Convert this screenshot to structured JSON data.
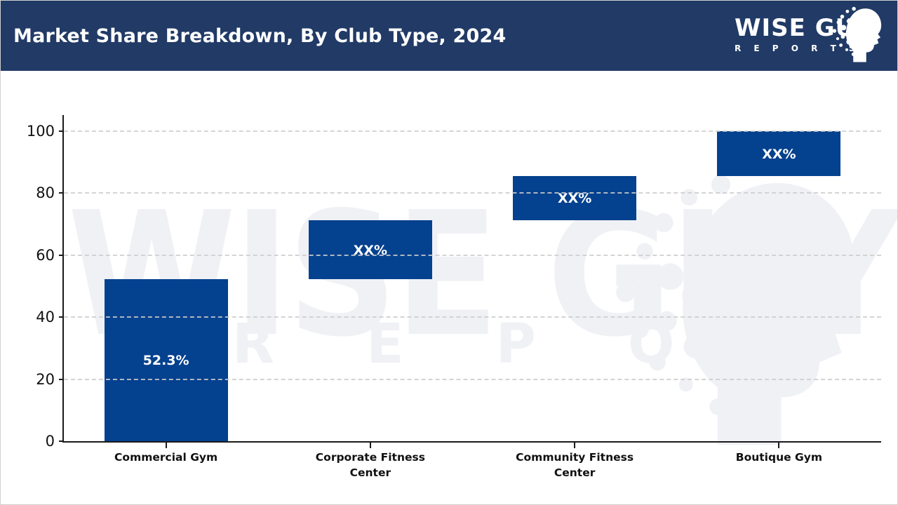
{
  "header": {
    "title": "Market Share Breakdown, By Club Type, 2024",
    "logo": {
      "line1": "WISE GUY",
      "line2": "R E P O R T S"
    }
  },
  "watermark": {
    "line1": "WISE GUY",
    "line2": "R E P O R T S"
  },
  "colors": {
    "header_bg": "#213A66",
    "bar": "#04418E",
    "grid": "#CDCDCD",
    "axis": "#1A1A1A",
    "bar_label_text": "#FFFFFF",
    "tick_text": "#111111",
    "watermark": "#F0F1F5"
  },
  "chart_data": {
    "type": "bar",
    "subtype": "waterfall",
    "title": "Market Share Breakdown, By Club Type, 2024",
    "xlabel": "",
    "ylabel": "",
    "categories": [
      {
        "name": "Commercial Gym",
        "lines": [
          "Commercial Gym"
        ]
      },
      {
        "name": "Corporate Fitness Center",
        "lines": [
          "Corporate Fitness",
          "Center"
        ]
      },
      {
        "name": "Community Fitness Center",
        "lines": [
          "Community Fitness",
          "Center"
        ]
      },
      {
        "name": "Boutique Gym",
        "lines": [
          "Boutique Gym"
        ]
      }
    ],
    "segments": [
      {
        "category": "Commercial Gym",
        "start": 0,
        "end": 52.3,
        "value": 52.3,
        "label": "52.3%",
        "masked": false
      },
      {
        "category": "Corporate Fitness Center",
        "start": 52.3,
        "end": 71.3,
        "value": 19.0,
        "label": "XX%",
        "masked": true
      },
      {
        "category": "Community Fitness Center",
        "start": 71.3,
        "end": 85.5,
        "value": 14.2,
        "label": "XX%",
        "masked": true
      },
      {
        "category": "Boutique Gym",
        "start": 85.5,
        "end": 100,
        "value": 14.5,
        "label": "XX%",
        "masked": true
      }
    ],
    "yticks": [
      0,
      20,
      40,
      60,
      80,
      100
    ],
    "ylim": [
      0,
      105
    ],
    "grid": "horizontal-dashed",
    "legend": "none",
    "bar_unit": "%"
  }
}
